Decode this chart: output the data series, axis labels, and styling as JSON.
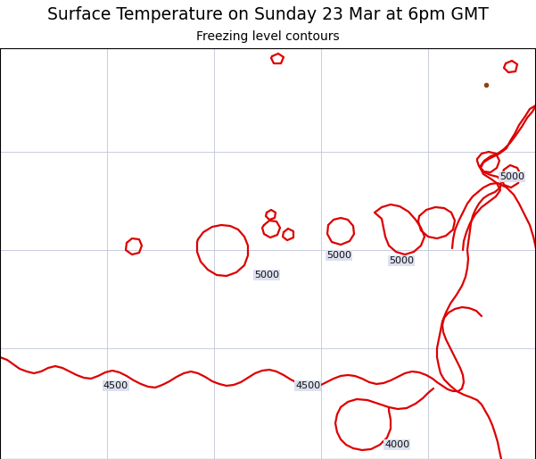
{
  "title": "Surface Temperature on Sunday 23 Mar at 6pm GMT",
  "subtitle": "Freezing level contours",
  "title_fontsize": 13.5,
  "subtitle_fontsize": 10,
  "map_bg": "#dce0ef",
  "contour_color": "#dd0000",
  "contour_lw": 1.6,
  "grid_color": "#c8ccdd",
  "label_color": "#111111",
  "label_fontsize": 8,
  "dot_color": "#8B4513",
  "figsize": [
    6.01,
    5.14
  ],
  "dpi": 100
}
